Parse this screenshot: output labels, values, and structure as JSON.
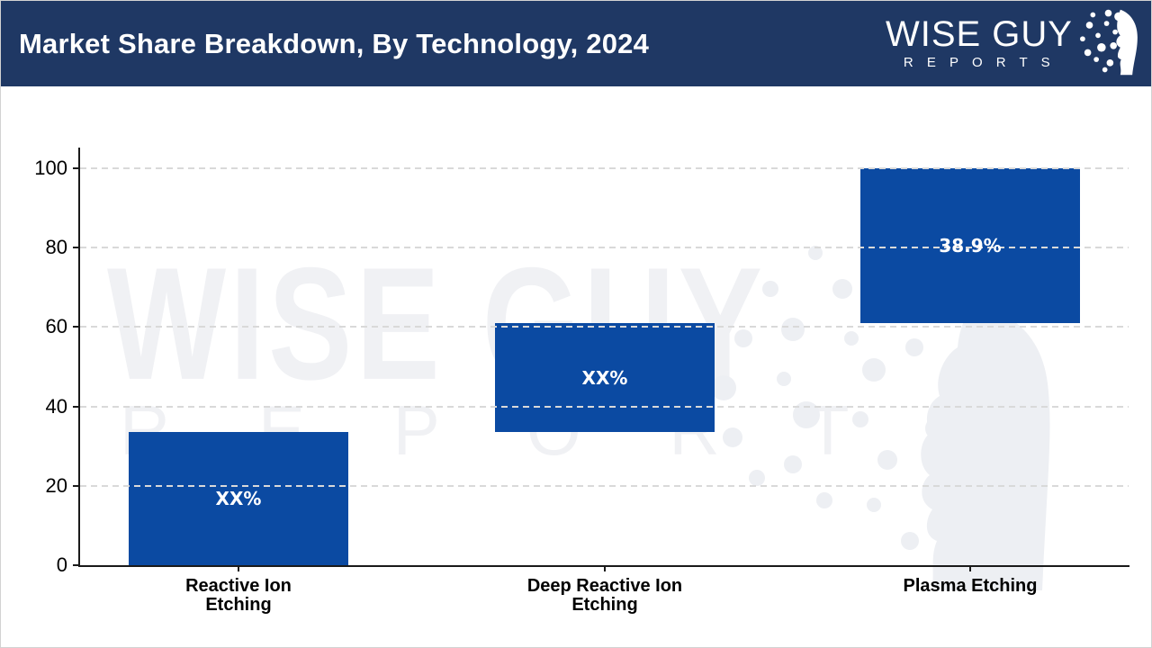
{
  "header": {
    "title": "Market Share Breakdown, By Technology, 2024",
    "logo": {
      "wordmark": "WISE GUY",
      "subtitle": "R E P O R T S"
    }
  },
  "watermark": {
    "wordmark": "WISE GUY",
    "subtitle": "R E P O R T S"
  },
  "colors": {
    "header_bg": "#1f3864",
    "bar_fill": "#0b4aa2",
    "bar_label_text": "#ffffff",
    "grid_line": "#d9d9d9",
    "axis_line": "#1a1a1a",
    "tick_text": "#000000",
    "watermark_gray": "#f0f1f4"
  },
  "chart_data": {
    "type": "bar",
    "variant": "floating-segment-waterfall",
    "title": "Market Share Breakdown, By Technology, 2024",
    "categories": [
      "Reactive Ion Etching",
      "Deep Reactive Ion Etching",
      "Plasma Etching"
    ],
    "category_label_lines": [
      [
        "Reactive Ion",
        "Etching"
      ],
      [
        "Deep Reactive Ion",
        "Etching"
      ],
      [
        "Plasma Etching"
      ]
    ],
    "segments": [
      {
        "category": "Reactive Ion Etching",
        "start": 0,
        "end": 33.5,
        "label": "XX%",
        "estimated_value": 33.5
      },
      {
        "category": "Deep Reactive Ion Etching",
        "start": 33.5,
        "end": 61.1,
        "label": "XX%",
        "estimated_value": 27.6
      },
      {
        "category": "Plasma Etching",
        "start": 61.1,
        "end": 100,
        "label": "38.9%",
        "estimated_value": 38.9
      }
    ],
    "ylim": [
      0,
      100
    ],
    "y_ticks": [
      0,
      20,
      40,
      60,
      80,
      100
    ],
    "xlabel": "",
    "ylabel": "",
    "grid": "horizontal-dashed",
    "legend": "none"
  }
}
